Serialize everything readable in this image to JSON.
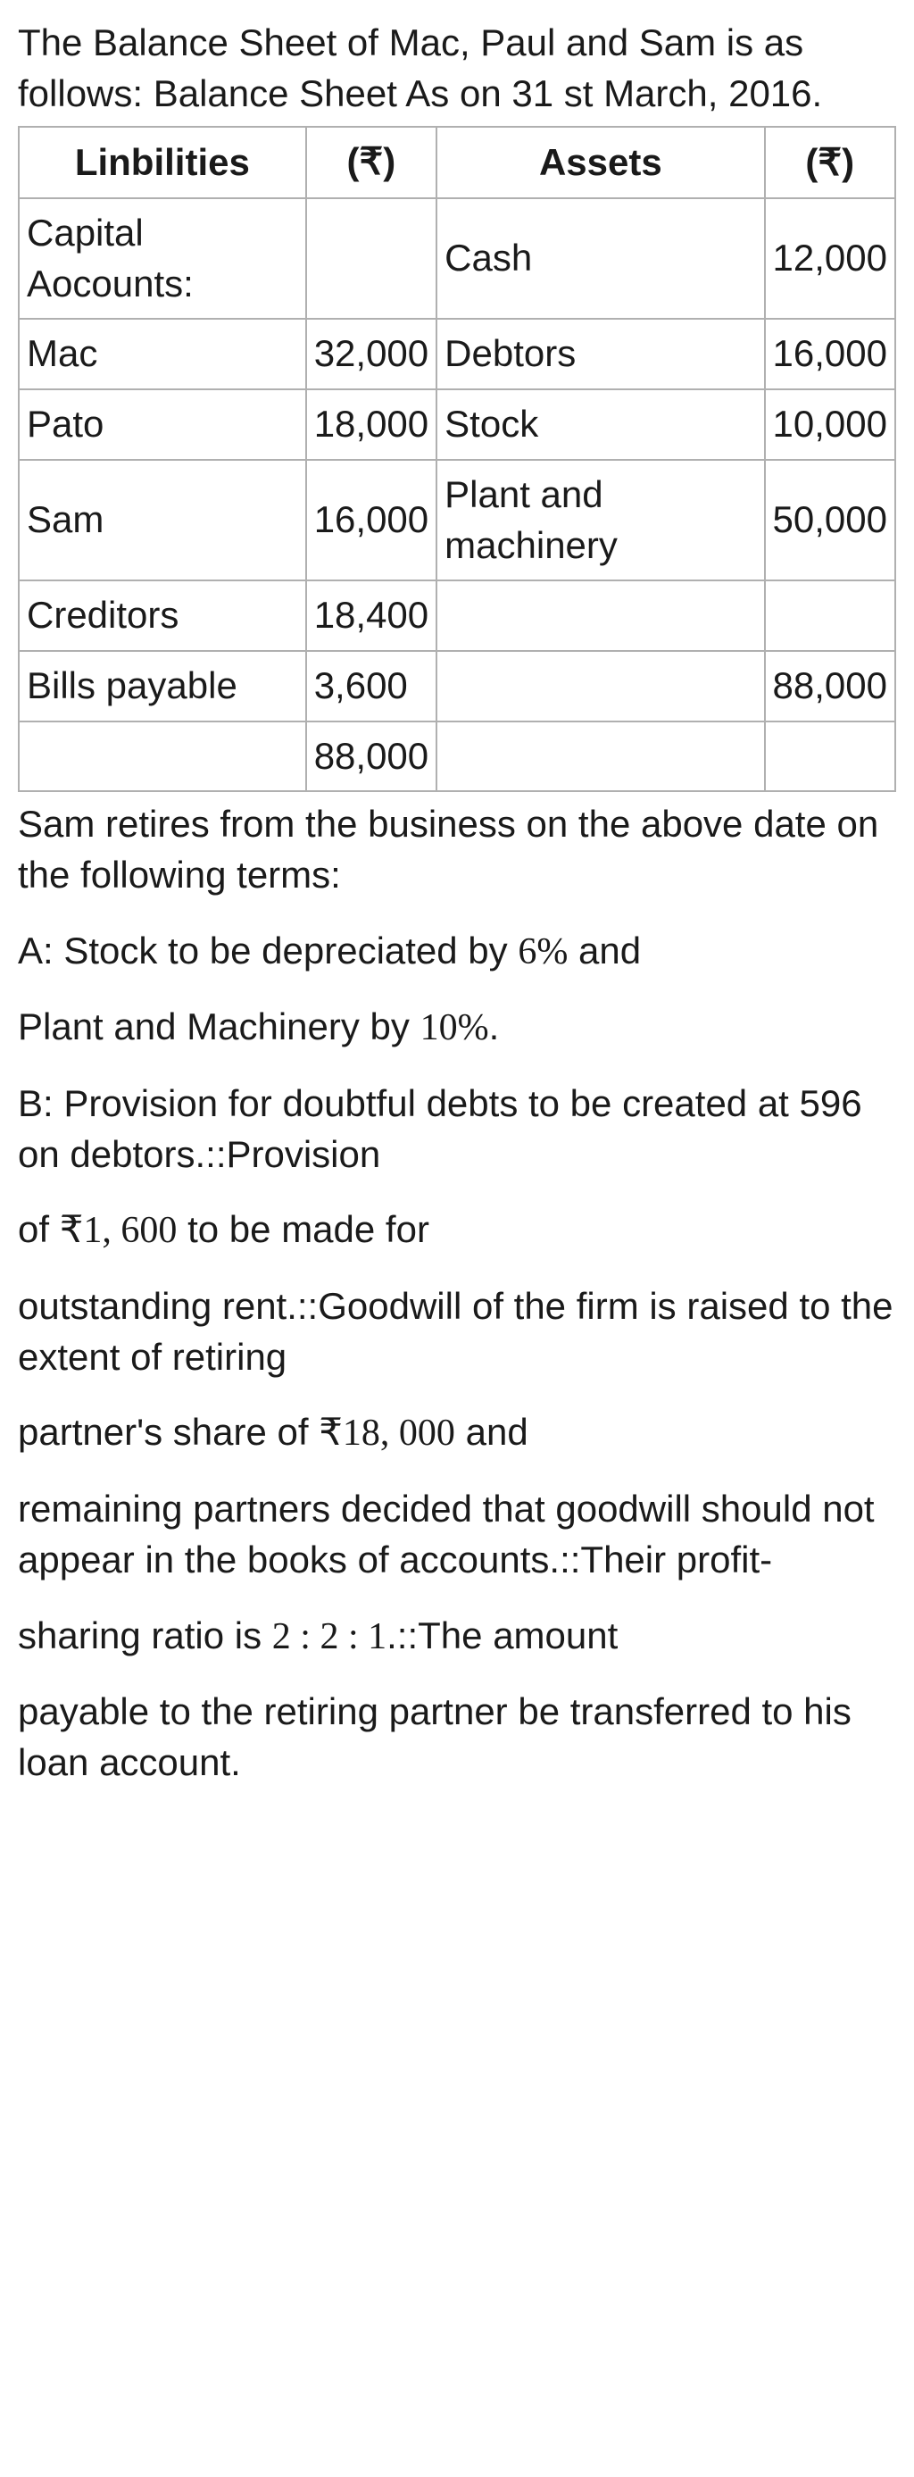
{
  "intro": "The Balance Sheet of Mac, Paul and Sam is as follows: Balance Sheet As on 31 st March, 2016.",
  "table": {
    "headers": {
      "h1": "Linbilities",
      "h2_prefix": "(",
      "h2_suffix": ")",
      "h3": "Assets",
      "h4": "(₹)"
    },
    "rows": [
      {
        "c1": "Capital Aocounts:",
        "c2": "",
        "c3": "Cash",
        "c4": "12,000"
      },
      {
        "c1": "Mac",
        "c2": "32,000",
        "c3": "Debtors",
        "c4": "16,000"
      },
      {
        "c1": "Pato",
        "c2": "18,000",
        "c3": "Stock",
        "c4": "10,000"
      },
      {
        "c1": "Sam",
        "c2": "16,000",
        "c3": "Plant and machinery",
        "c4": "50,000"
      },
      {
        "c1": "Creditors",
        "c2": "18,400",
        "c3": "",
        "c4": ""
      },
      {
        "c1": "Bills payable",
        "c2": "3,600",
        "c3": "",
        "c4": "88,000"
      },
      {
        "c1": "",
        "c2": "88,000",
        "c3": "",
        "c4": ""
      }
    ]
  },
  "body": {
    "p1": "Sam retires from the business on the above date on the following terms:",
    "p2a": "A:  Stock to be depreciated by ",
    "p2b": "6%",
    "p2c": " and",
    "p3a": "Plant and Machinery by ",
    "p3b": "10%",
    "p3c": ".",
    "p4a": "B:  Provision for doubtful debts to be created at 596 on debtors.::Provision",
    "p5a": "of ",
    "p5b": "₹1, 600",
    "p5c": " to be made for",
    "p6": "outstanding rent.::Goodwill of the firm is raised to the extent of retiring",
    "p7a": "partner's share of ",
    "p7b": "₹18, 000",
    "p7c": " and",
    "p8": "remaining partners decided that goodwill should not appear in the books of accounts.::Their profit-",
    "p9a": "sharing ratio is ",
    "p9b": "2 : 2 : 1",
    "p9c": ".::The amount",
    "p10": "payable to the retiring partner be transferred to his loan account."
  }
}
